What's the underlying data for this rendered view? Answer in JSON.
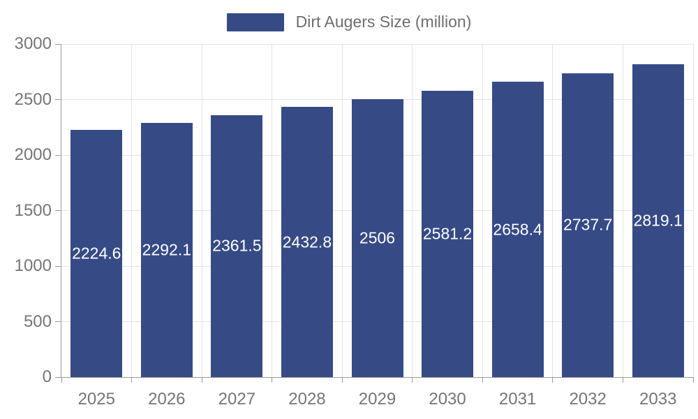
{
  "legend": {
    "label": "Dirt Augers Size (million)"
  },
  "colors": {
    "bar": "#364a85",
    "grid": "#e3e3e3",
    "axis": "#999999",
    "axis_text": "#757575",
    "legend_text": "#6e6e6e",
    "value_label": "#ffffff",
    "background": "#ffffff"
  },
  "chart_data": {
    "type": "bar",
    "title": "Dirt Augers Size (million)",
    "legend_entries": [
      "Dirt Augers Size (million)"
    ],
    "legend_position": "top-center",
    "categories": [
      "2025",
      "2026",
      "2027",
      "2028",
      "2029",
      "2030",
      "2031",
      "2032",
      "2033"
    ],
    "values": [
      2224.6,
      2292.1,
      2361.5,
      2432.8,
      2506,
      2581.2,
      2658.4,
      2737.7,
      2819.1
    ],
    "value_labels": [
      "2224.6",
      "2292.1",
      "2361.5",
      "2432.8",
      "2506",
      "2581.2",
      "2658.4",
      "2737.7",
      "2819.1"
    ],
    "value_label_position": "inside-middle",
    "xlabel": "",
    "ylabel": "",
    "ylim": [
      0,
      3000
    ],
    "yticks": [
      0,
      500,
      1000,
      1500,
      2000,
      2500,
      3000
    ],
    "grid": "horizontal and vertical band boundaries"
  }
}
